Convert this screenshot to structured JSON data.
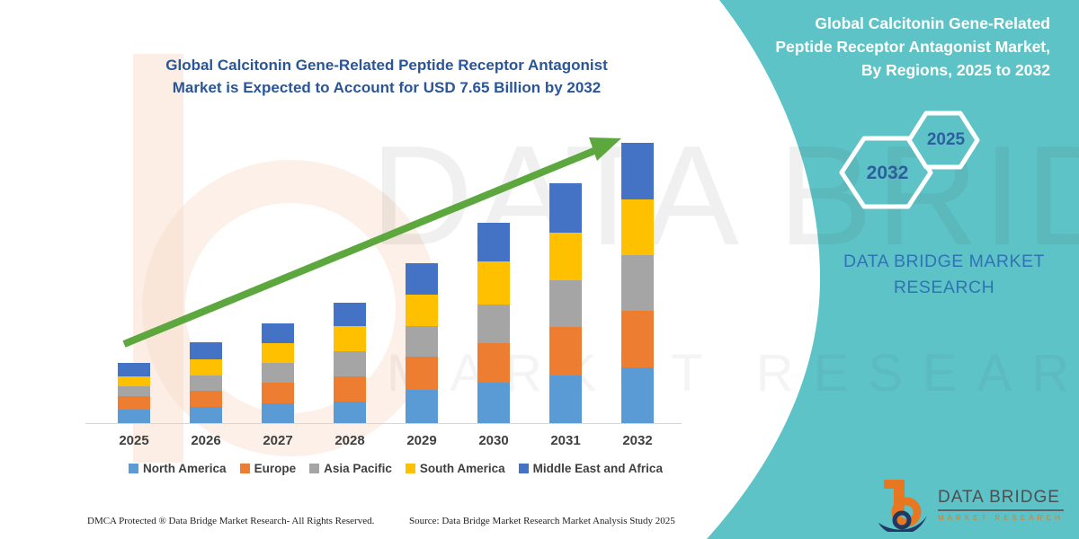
{
  "main_title": {
    "line1": "Global Calcitonin Gene-Related Peptide Receptor Antagonist",
    "line2": "Market is Expected to Account for USD 7.65 Billion by 2032"
  },
  "panel": {
    "title_line1": "Global Calcitonin Gene-Related",
    "title_line2": "Peptide Receptor Antagonist Market,",
    "title_line3": "By Regions, 2025 to 2032",
    "hexagons": [
      {
        "label": "2032"
      },
      {
        "label": "2025"
      }
    ],
    "brand_line1": "DATA BRIDGE MARKET",
    "brand_line2": "RESEARCH",
    "colors": {
      "background": "#5EC3C6",
      "hex_year_text": "#2C5F9E",
      "brand_text": "#2E74B5"
    }
  },
  "chart_data": {
    "type": "bar",
    "stacked": true,
    "title": "Global Calcitonin Gene-Related Peptide Receptor Antagonist Market is Expected to Account for USD 7.65 Billion by 2032",
    "unit": "USD Billion",
    "xlabel": "",
    "ylabel": "",
    "y_axis_visible": false,
    "grid": false,
    "legend_position": "bottom",
    "ylim": [
      0,
      8
    ],
    "categories": [
      "2025",
      "2026",
      "2027",
      "2028",
      "2029",
      "2030",
      "2031",
      "2032"
    ],
    "series": [
      {
        "name": "North America",
        "color": "#5B9BD5",
        "values": [
          0.37,
          0.43,
          0.53,
          0.59,
          0.9,
          1.1,
          1.29,
          1.53
        ]
      },
      {
        "name": "Europe",
        "color": "#ED7D31",
        "values": [
          0.37,
          0.44,
          0.57,
          0.69,
          0.9,
          1.08,
          1.33,
          1.54
        ]
      },
      {
        "name": "Asia Pacific",
        "color": "#A5A5A5",
        "values": [
          0.28,
          0.42,
          0.53,
          0.68,
          0.83,
          1.06,
          1.27,
          1.53
        ]
      },
      {
        "name": "South America",
        "color": "#FFC000",
        "values": [
          0.27,
          0.45,
          0.55,
          0.69,
          0.87,
          1.18,
          1.3,
          1.51
        ]
      },
      {
        "name": "Middle East and Africa",
        "color": "#4472C4",
        "values": [
          0.37,
          0.47,
          0.55,
          0.63,
          0.87,
          1.05,
          1.36,
          1.54
        ]
      }
    ],
    "totals": [
      1.66,
      2.21,
      2.73,
      3.28,
      4.37,
      5.47,
      6.55,
      7.65
    ],
    "annotations": [
      {
        "type": "trend-arrow",
        "direction": "up",
        "color": "#5CA83E"
      }
    ]
  },
  "footer": {
    "dmca": "DMCA Protected ® Data Bridge Market Research-  All Rights Reserved.",
    "source": "Source: Data Bridge Market Research  Market Analysis Study 2025"
  },
  "logo": {
    "title": "DATA BRIDGE",
    "subtitle": "MARKET RESEARCH"
  },
  "watermark": {
    "line1": "DATA BRIDGE",
    "line2": "MARKET RESEARCH"
  }
}
